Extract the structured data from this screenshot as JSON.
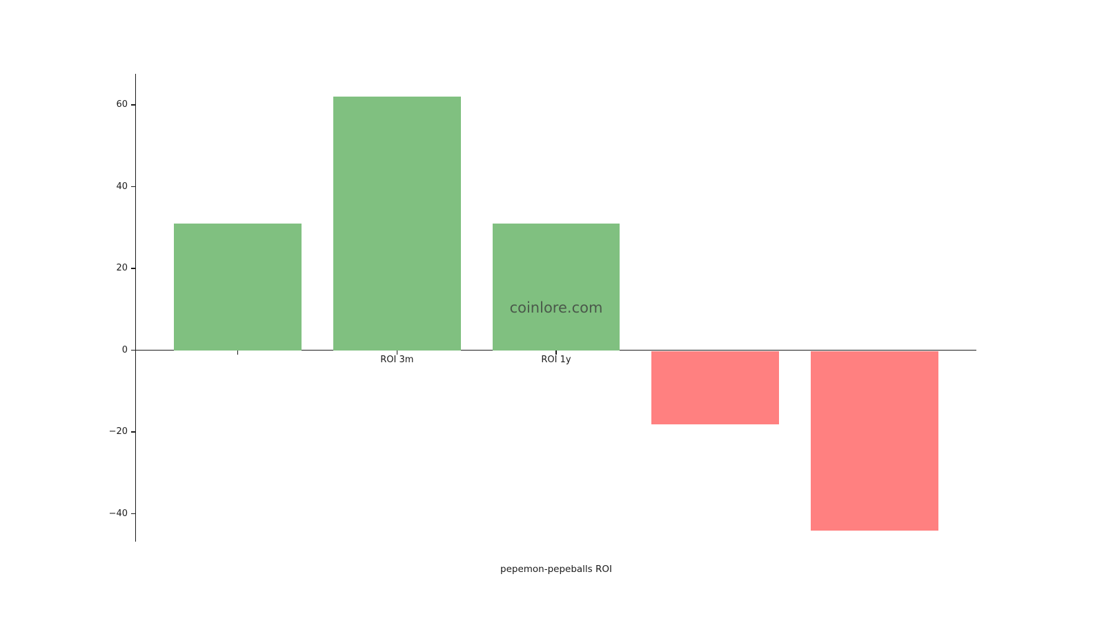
{
  "watermark": {
    "text": "coinlore.com",
    "color": "#3c3c3c"
  },
  "chart_data": {
    "type": "bar",
    "title": "pepemon-pepeballs ROI",
    "categories": [
      "",
      "ROI 3m",
      "ROI 1y",
      "",
      ""
    ],
    "values": [
      31,
      62,
      31,
      -18,
      -44
    ],
    "x_tick_marks": [
      true,
      true,
      true,
      false,
      false
    ],
    "yticks": [
      {
        "v": 60,
        "label": "60"
      },
      {
        "v": 40,
        "label": "40"
      },
      {
        "v": 20,
        "label": "20"
      },
      {
        "v": 0,
        "label": "0"
      },
      {
        "v": -20,
        "label": "−20"
      },
      {
        "v": -40,
        "label": "−40"
      }
    ],
    "ylim": [
      -46.8,
      67.6
    ],
    "xlabel": "",
    "ylabel": "",
    "grid": false,
    "legend": "none",
    "positive_color": "#80c080",
    "negative_color": "#ff8080",
    "axis_color": "#1a1a1a",
    "text_color": "#1a1a1a"
  }
}
